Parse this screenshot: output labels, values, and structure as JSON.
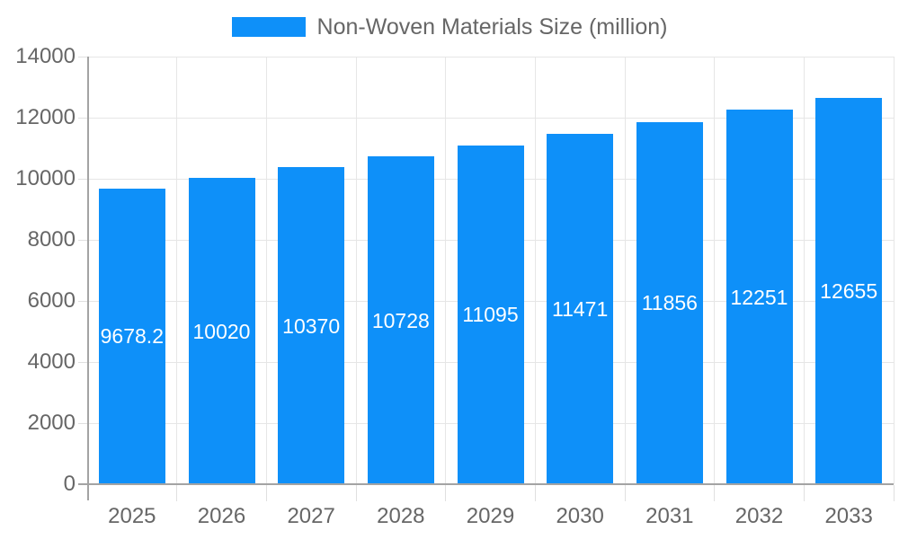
{
  "chart_data": {
    "type": "bar",
    "title": "Non-Woven Materials Size (million)",
    "legend": {
      "position": "top",
      "entries": [
        "Non-Woven Materials Size (million)"
      ]
    },
    "categories": [
      "2025",
      "2026",
      "2027",
      "2028",
      "2029",
      "2030",
      "2031",
      "2032",
      "2033"
    ],
    "values": [
      9678.2,
      10020,
      10370,
      10728,
      11095,
      11471,
      11856,
      12251,
      12655
    ],
    "value_labels": [
      "9678.2",
      "10020",
      "10370",
      "10728",
      "11095",
      "11471",
      "11856",
      "12251",
      "12655"
    ],
    "xlabel": "",
    "ylabel": "",
    "ylim": [
      0,
      14000
    ],
    "ytick_step": 2000,
    "ytick_labels": [
      "0",
      "2000",
      "4000",
      "6000",
      "8000",
      "10000",
      "12000",
      "14000"
    ],
    "grid": true,
    "colors": {
      "bar": "#0e90f9",
      "bar_label_text": "#ffffff",
      "axis_text": "#666666",
      "grid_line": "#e6e6e6",
      "axis_line": "#a3a3a3"
    }
  }
}
